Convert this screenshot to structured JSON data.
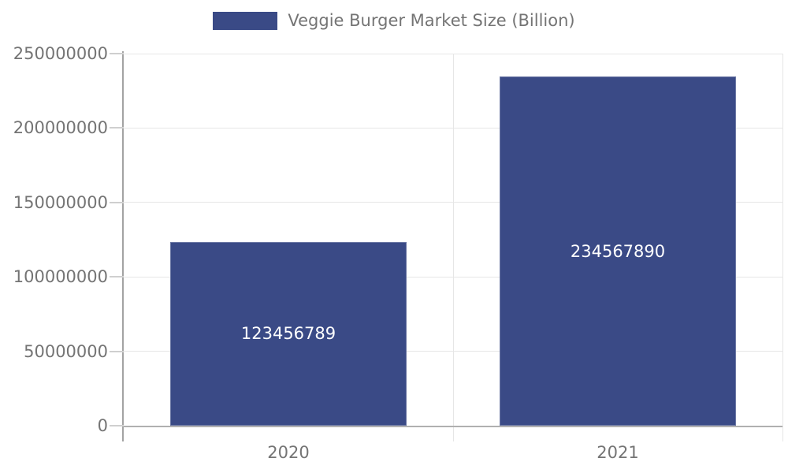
{
  "chart_data": {
    "type": "bar",
    "title": "",
    "categories": [
      "2020",
      "2021"
    ],
    "series": [
      {
        "name": "Veggie Burger Market Size (Billion)",
        "values": [
          123456789,
          234567890
        ]
      }
    ],
    "bar_value_labels": [
      "123456789",
      "234567890"
    ],
    "yticks": [
      0,
      50000000,
      100000000,
      150000000,
      200000000,
      250000000
    ],
    "ytick_labels": [
      "0",
      "50000000",
      "100000000",
      "150000000",
      "200000000",
      "250000000"
    ],
    "ylim": [
      0,
      250000000
    ],
    "xlabel": "",
    "ylabel": "",
    "legend_position": "top",
    "grid": true
  },
  "legend": {
    "label": "Veggie Burger Market Size (Billion)"
  },
  "colors": {
    "bar": "#3A4A86",
    "text": "#747474",
    "grid": "#e6e6e6",
    "y_axis": "#a3a3a3",
    "x_axis": "#b0b0b0",
    "tick": "#cfcfcf",
    "bar_label": "#ffffff",
    "background": "#ffffff"
  }
}
